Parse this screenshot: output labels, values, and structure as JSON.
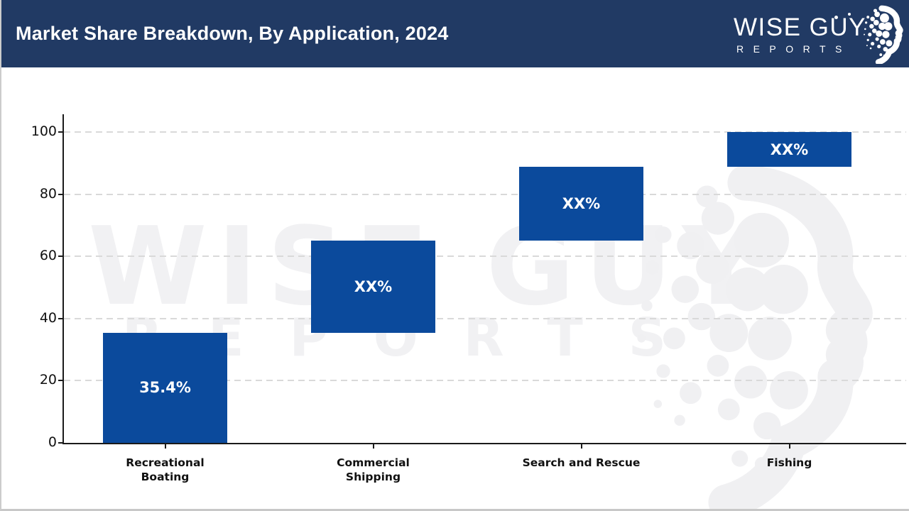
{
  "header": {
    "title": "Market Share Breakdown, By Application, 2024",
    "logo": {
      "line1": "WISE GUY",
      "line2": "REPORTS"
    }
  },
  "watermark": {
    "line1": "WISE GUY",
    "line2": "REPORTS"
  },
  "chart_data": {
    "type": "bar",
    "subtype": "waterfall-floating-bars",
    "title": "Market Share Breakdown, By Application, 2024",
    "xlabel": "",
    "ylabel": "",
    "ylim": [
      0,
      105
    ],
    "yticks": [
      0,
      20,
      40,
      60,
      80,
      100
    ],
    "grid": "horizontal dashed",
    "legend": "none",
    "bar_color": "#0b4a9c",
    "bar_label_color": "#ffffff",
    "categories": [
      "Recreational Boating",
      "Commercial Shipping",
      "Search and Rescue",
      "Fishing"
    ],
    "category_lines": [
      [
        "Recreational",
        "Boating"
      ],
      [
        "Commercial",
        "Shipping"
      ],
      [
        "Search and Rescue"
      ],
      [
        "Fishing"
      ]
    ],
    "segments": [
      {
        "category": "Recreational Boating",
        "start": 0,
        "end": 35.4,
        "value": 35.4,
        "label": "35.4%"
      },
      {
        "category": "Commercial Shipping",
        "start": 35.4,
        "end": 65.0,
        "value": 29.6,
        "label": "XX%"
      },
      {
        "category": "Search and Rescue",
        "start": 65.0,
        "end": 88.7,
        "value": 23.7,
        "label": "XX%"
      },
      {
        "category": "Fishing",
        "start": 88.7,
        "end": 100.0,
        "value": 11.3,
        "label": "XX%"
      }
    ]
  },
  "colors": {
    "header_bg": "#213a64",
    "bar": "#0b4a9c",
    "gridline": "#d9d9d9",
    "axis": "#1a1a1a",
    "watermark": "#f1f1f3",
    "frame_border": "#cccccc"
  }
}
